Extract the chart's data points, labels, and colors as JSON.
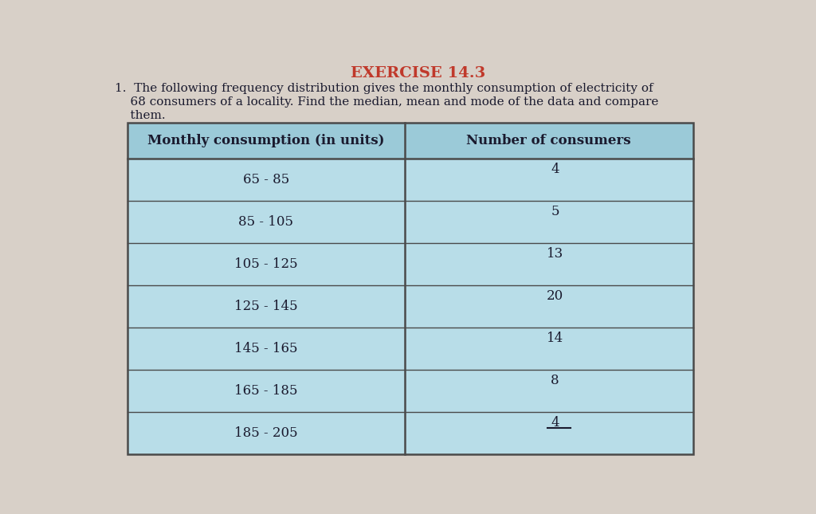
{
  "title": "EXERCISE 14.3",
  "title_color": "#c0392b",
  "question_line1": "1.  The following frequency distribution gives the monthly consumption of electricity of",
  "question_line2": "    68 consumers of a locality. Find the median, mean and mode of the data and compare",
  "question_line3": "    them.",
  "col1_header": "Monthly consumption (in units)",
  "col2_header": "Number of consumers",
  "rows": [
    [
      "65 - 85",
      "4"
    ],
    [
      "85 - 105",
      "5"
    ],
    [
      "105 - 125",
      "13"
    ],
    [
      "125 - 145",
      "20"
    ],
    [
      "145 - 165",
      "14"
    ],
    [
      "165 - 185",
      "8"
    ],
    [
      "185 - 205",
      "4"
    ]
  ],
  "table_bg": "#b8dde8",
  "header_bg": "#9bcad8",
  "border_color": "#4a4a4a",
  "text_color": "#1a1a2e",
  "bg_color": "#d8d0c8",
  "header_fontsize": 12,
  "cell_fontsize": 12,
  "title_fontsize": 14,
  "question_fontsize": 11
}
